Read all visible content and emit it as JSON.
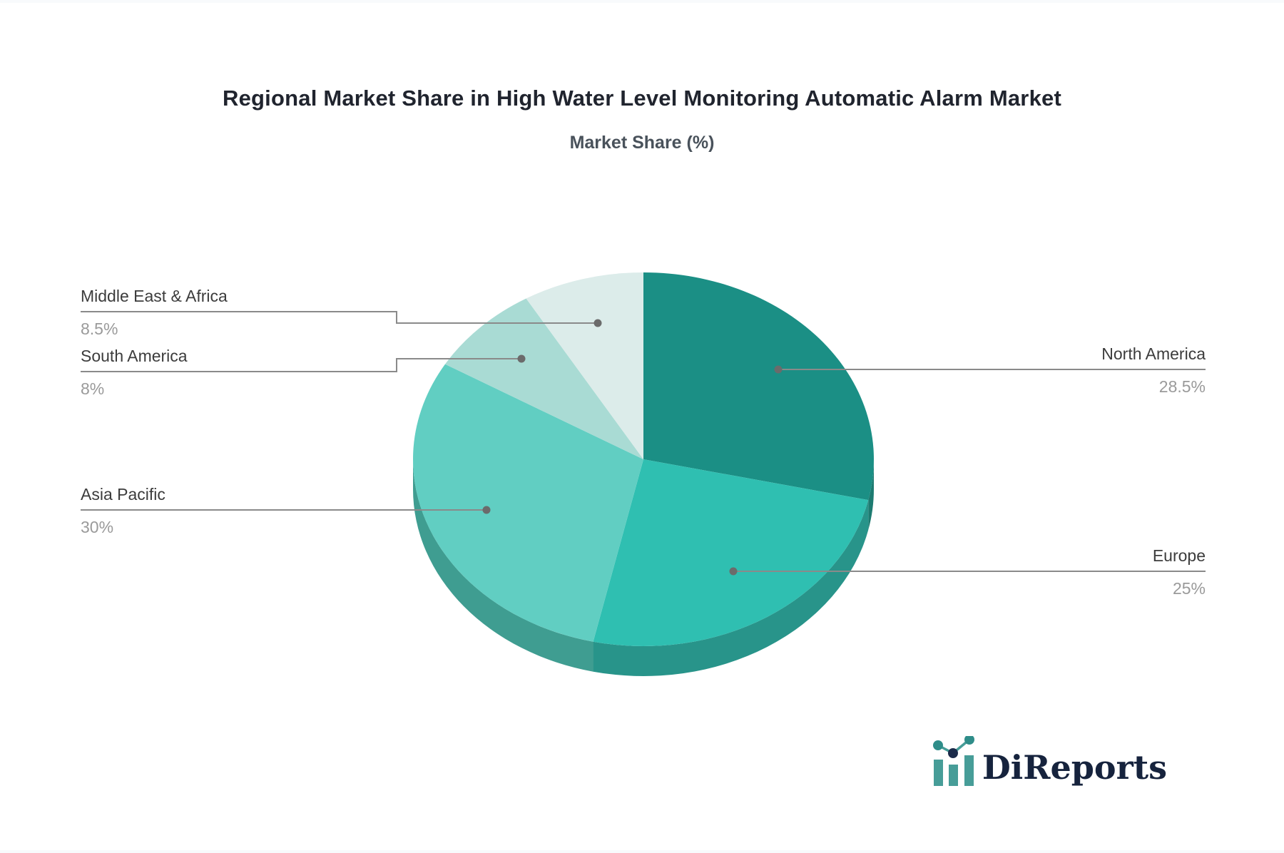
{
  "chart_data": {
    "type": "pie",
    "title": "Regional Market Share in High Water Level Monitoring Automatic Alarm Market",
    "subtitle": "Market Share (%)",
    "unit": "%",
    "direction": "clockwise",
    "start_angle_deg": 0,
    "effect": "3d-depth",
    "legend_position": "none",
    "slices": [
      {
        "label": "North America",
        "value": 28.5,
        "value_label": "28.5%",
        "color": "#1b8f85",
        "side_color": "#1d7b71"
      },
      {
        "label": "Europe",
        "value": 25,
        "value_label": "25%",
        "color": "#2fbfb1",
        "side_color": "#28948a"
      },
      {
        "label": "Asia Pacific",
        "value": 30,
        "value_label": "30%",
        "color": "#61cec2",
        "side_color": "#3f9d91"
      },
      {
        "label": "South America",
        "value": 8,
        "value_label": "8%",
        "color": "#a9dbd4",
        "side_color": "#7fbdb4"
      },
      {
        "label": "Middle East & Africa",
        "value": 8.5,
        "value_label": "8.5%",
        "color": "#dcecea",
        "side_color": "#b8d6d2"
      }
    ],
    "leader_line_color": "#8a8a8a",
    "leader_dot_color": "#6b6b6b",
    "label_color": "#3c3c3c",
    "value_color": "#9a9a9a"
  },
  "branding": {
    "logo_text": "DiReports",
    "logo_icon": "bar-chart-trend-icon",
    "logo_text_color": "#16233d",
    "logo_teal": "#479d98",
    "logo_navy": "#1b2b4a"
  }
}
